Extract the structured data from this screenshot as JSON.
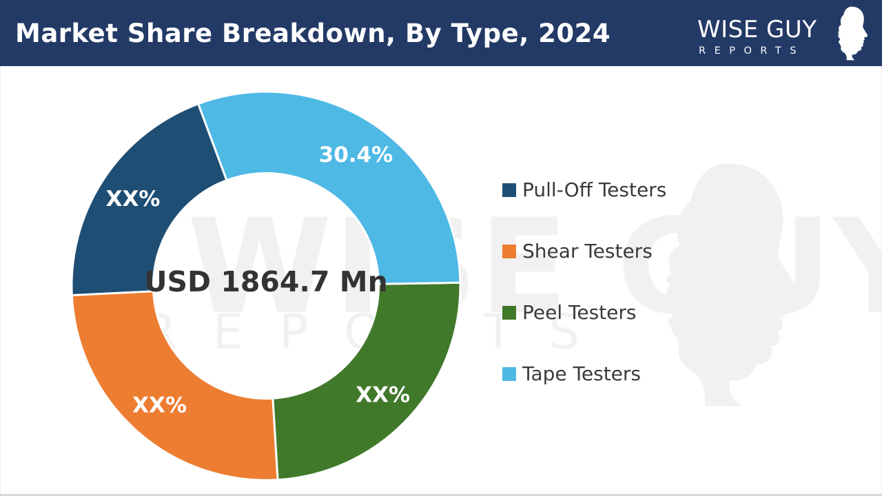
{
  "header": {
    "title": "Market Share Breakdown, By Type, 2024",
    "logo": {
      "line1": "WISE GUY",
      "line2": "REPORTS"
    }
  },
  "watermark": {
    "line1": "WISE GUY",
    "line2": "REPORTS"
  },
  "chart_data": {
    "type": "pie",
    "subtype": "donut",
    "title": "Market Share Breakdown, By Type, 2024",
    "center_label": "USD 1864.7 Mn",
    "start_angle_deg": 110.4,
    "direction": "counterclockwise",
    "inner_radius_ratio": 0.58,
    "label_radius_ratio": 0.82,
    "legend_position": "right",
    "segments": [
      {
        "name": "Pull-Off Testers",
        "value_pct": 20.1,
        "label": "XX%",
        "color": "#1F4E74"
      },
      {
        "name": "Shear Testers",
        "value_pct": 25.2,
        "label": "XX%",
        "color": "#ED7D31"
      },
      {
        "name": "Peel Testers",
        "value_pct": 24.3,
        "label": "XX%",
        "color": "#41792B"
      },
      {
        "name": "Tape Testers",
        "value_pct": 30.4,
        "label": "30.4%",
        "color": "#4EB9E5"
      }
    ]
  },
  "colors": {
    "header_bg": "#233A66",
    "text_dark": "#333333",
    "legend_text": "#3A3A3A",
    "watermark": "#F1F1F1"
  }
}
